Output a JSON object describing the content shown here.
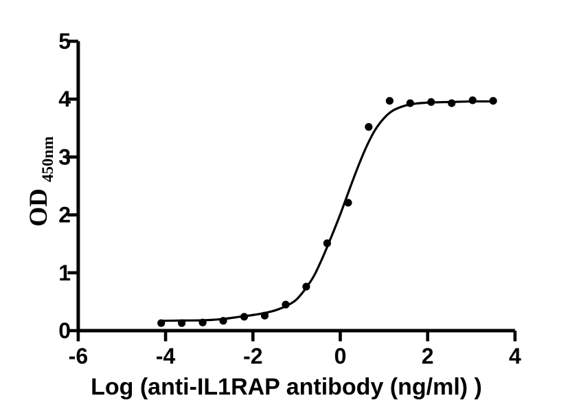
{
  "figure": {
    "background": "#ffffff",
    "foreground": "#000000"
  },
  "chart_data": {
    "type": "scatter",
    "subtype": "sigmoidal-dose-response-fit",
    "title": "",
    "xlabel": "Log (anti-IL1RAP antibody (ng/ml) )",
    "ylabel_base": "OD",
    "ylabel_sub": "450nm",
    "xlim": [
      -6,
      4
    ],
    "ylim": [
      0,
      5
    ],
    "x_ticks": [
      -6,
      -4,
      -2,
      0,
      2,
      4
    ],
    "y_ticks": [
      0,
      1,
      2,
      3,
      4,
      5
    ],
    "grid": false,
    "legend_position": "none",
    "marker_color": "#000000",
    "curve_color": "#000000",
    "axis_color": "#000000",
    "points": {
      "x": [
        -4.1,
        -3.63,
        -3.15,
        -2.68,
        -2.2,
        -1.73,
        -1.25,
        -0.78,
        -0.3,
        0.18,
        0.65,
        1.13,
        1.6,
        2.08,
        2.55,
        3.03,
        3.5
      ],
      "y": [
        0.13,
        0.13,
        0.14,
        0.17,
        0.24,
        0.26,
        0.45,
        0.76,
        1.51,
        2.21,
        3.52,
        3.97,
        3.93,
        3.95,
        3.93,
        3.98,
        3.97
      ]
    },
    "fit_curve": [
      [
        -4.1,
        0.17
      ],
      [
        -3.6,
        0.175
      ],
      [
        -3.1,
        0.18
      ],
      [
        -2.7,
        0.2
      ],
      [
        -2.3,
        0.24
      ],
      [
        -2.0,
        0.27
      ],
      [
        -1.7,
        0.31
      ],
      [
        -1.45,
        0.36
      ],
      [
        -1.2,
        0.44
      ],
      [
        -1.0,
        0.54
      ],
      [
        -0.8,
        0.72
      ],
      [
        -0.6,
        0.95
      ],
      [
        -0.4,
        1.27
      ],
      [
        -0.2,
        1.63
      ],
      [
        0.0,
        2.01
      ],
      [
        0.2,
        2.42
      ],
      [
        0.4,
        2.82
      ],
      [
        0.6,
        3.18
      ],
      [
        0.8,
        3.47
      ],
      [
        1.0,
        3.67
      ],
      [
        1.2,
        3.8
      ],
      [
        1.45,
        3.88
      ],
      [
        1.7,
        3.92
      ],
      [
        2.0,
        3.94
      ],
      [
        2.5,
        3.95
      ],
      [
        3.0,
        3.96
      ],
      [
        3.5,
        3.96
      ]
    ]
  }
}
